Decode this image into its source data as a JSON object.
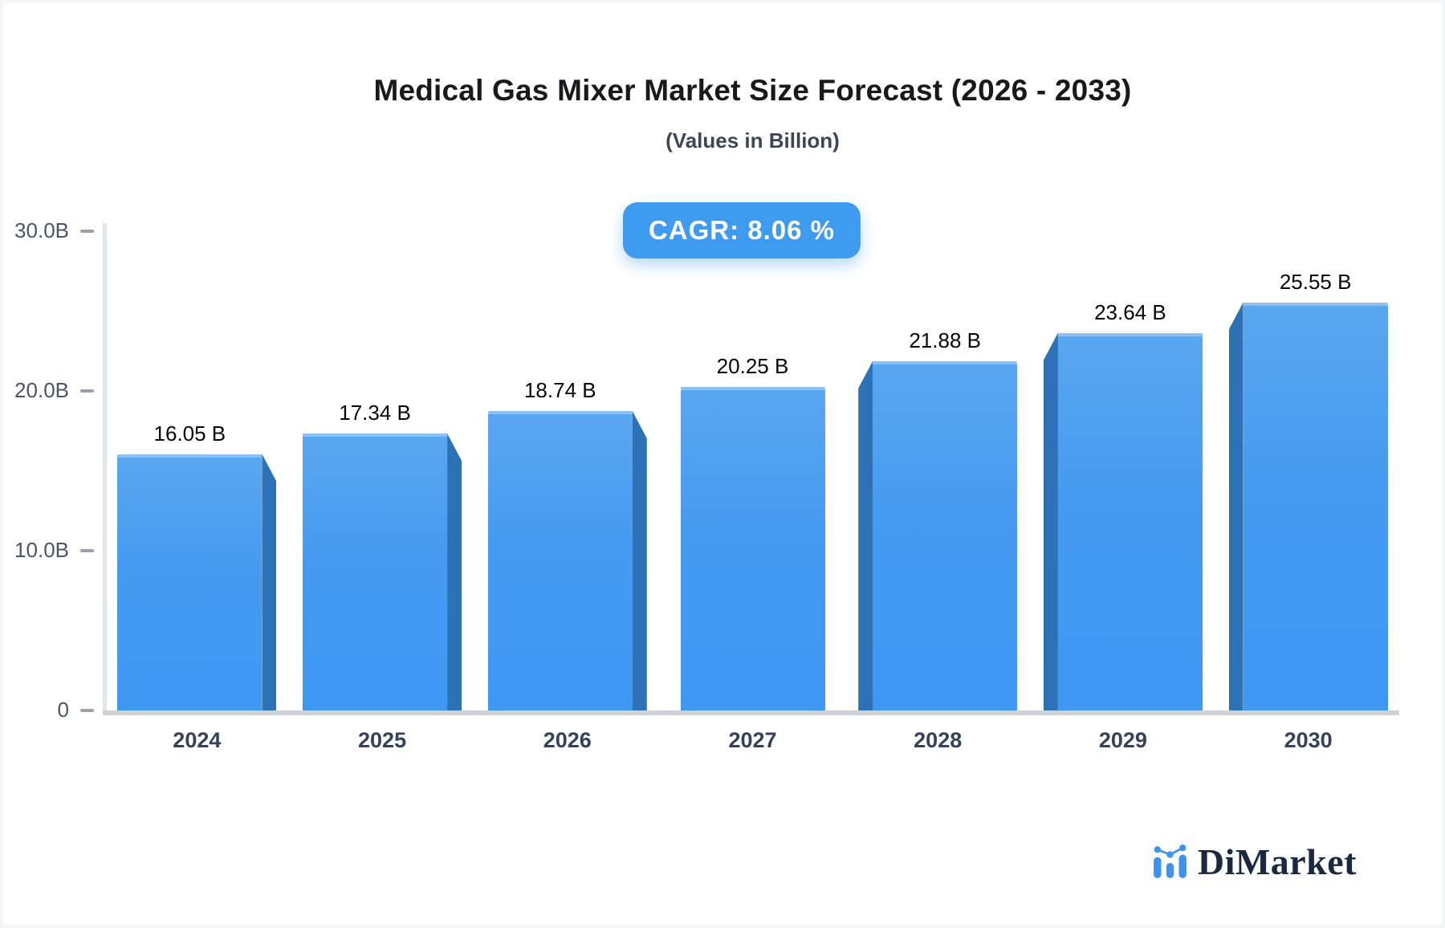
{
  "header": {
    "title": "Medical Gas Mixer Market Size Forecast (2026 - 2033)",
    "subtitle": "(Values in Billion)",
    "badge": "CAGR: 8.06 %",
    "badge_bg": "#3f9bef"
  },
  "chart_data": {
    "type": "bar",
    "categories": [
      "2024",
      "2025",
      "2026",
      "2027",
      "2028",
      "2029",
      "2030"
    ],
    "values": [
      16.05,
      17.34,
      18.74,
      20.25,
      21.88,
      23.64,
      25.55
    ],
    "value_labels": [
      "16.05 B",
      "17.34 B",
      "18.74 B",
      "20.25 B",
      "21.88 B",
      "23.64 B",
      "25.55 B"
    ],
    "title": "Medical Gas Mixer Market Size Forecast (2026 - 2033)",
    "subtitle": "(Values in Billion)",
    "xlabel": "",
    "ylabel": "",
    "ylim": [
      0,
      30
    ],
    "yticks": [
      {
        "value": 30,
        "label": "30.0B"
      },
      {
        "value": 20,
        "label": "20.0B"
      },
      {
        "value": 10,
        "label": "10.0B"
      },
      {
        "value": 0,
        "label": "0"
      }
    ],
    "grid": false,
    "legend": null,
    "bar_style": "3d-beveled",
    "colors": {
      "bar_top": "#5aa7f0",
      "bar_mid": "#459af1",
      "bar_bottom": "#3e98f3",
      "bar_side": "#2d72b6",
      "axis_line": "#e0e3e7",
      "baseline": "#cfd2d7",
      "tick_dash": "#99a1ac"
    }
  },
  "branding": {
    "logo_text": "DiMarket",
    "logo_icon": "bar-chart-logo-icon",
    "logo_icon_color": "#3e93f0",
    "logo_text_color": "#1a2840"
  }
}
